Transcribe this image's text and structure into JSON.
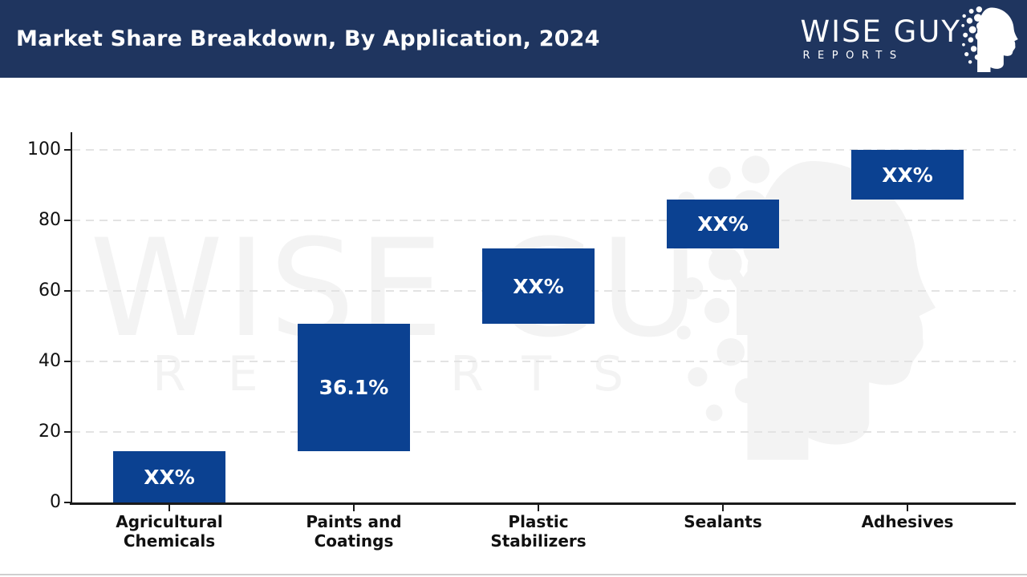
{
  "header": {
    "title": "Market Share Breakdown, By Application, 2024",
    "logo": {
      "line1": "WISE GUY",
      "line2": "REPORTS"
    }
  },
  "watermark": {
    "line1": "WISE GUY",
    "line2": "REPORTS"
  },
  "colors": {
    "header_bg": "#1f355f",
    "bar": "#0b4191",
    "bar_label": "#ffffff",
    "axis": "#1a1a1a",
    "grid": "#e3e3e3",
    "watermark": "#f3f3f3"
  },
  "chart_data": {
    "type": "bar",
    "subtype": "waterfall",
    "title": "Market Share Breakdown, By Application, 2024",
    "xlabel": "",
    "ylabel": "",
    "ylim": [
      0,
      100
    ],
    "yticks": [
      0,
      20,
      40,
      60,
      80,
      100
    ],
    "grid": "horizontal-dashed",
    "legend": null,
    "categories": [
      "Agricultural\nChemicals",
      "Paints and\nCoatings",
      "Plastic\nStabilizers",
      "Sealants",
      "Adhesives"
    ],
    "segments": [
      {
        "category": "Agricultural Chemicals",
        "from": 0,
        "to": 14.5,
        "label": "XX%"
      },
      {
        "category": "Paints and Coatings",
        "from": 14.5,
        "to": 50.6,
        "label": "36.1%",
        "value": 36.1
      },
      {
        "category": "Plastic Stabilizers",
        "from": 50.6,
        "to": 72.0,
        "label": "XX%"
      },
      {
        "category": "Sealants",
        "from": 72.0,
        "to": 85.9,
        "label": "XX%"
      },
      {
        "category": "Adhesives",
        "from": 85.9,
        "to": 100,
        "label": "XX%"
      }
    ]
  }
}
